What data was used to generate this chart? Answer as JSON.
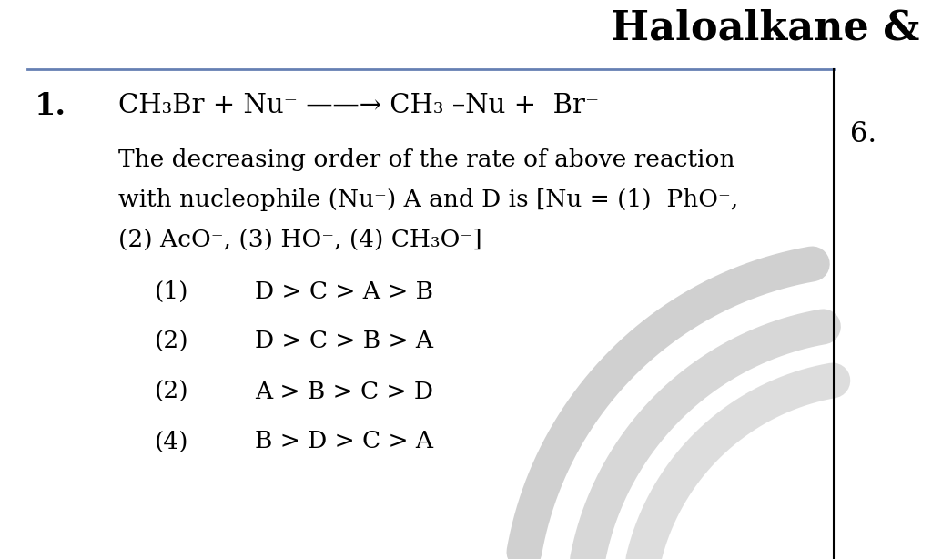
{
  "title": "Haloalkane &",
  "title_color": "#000000",
  "title_fontsize": 32,
  "background_color": "#ffffff",
  "header_line_color": "#6680b3",
  "question_number": "1.",
  "q_number_fontsize": 22,
  "equation": "CH₃Br + Nu⁻ ——→ CH₃ –Nu +  Br⁻",
  "description_line1": "The decreasing order of the rate of above reaction",
  "description_line2": "with nucleophile (Nu⁻) A and D is [Nu = (1)  PhO⁻,",
  "description_line3": "(2) AcO⁻, (3) HO⁻, (4) CH₃O⁻]",
  "options": [
    {
      "num": "(1)",
      "text": "D > C > A > B"
    },
    {
      "num": "(2)",
      "text": "D > C > B > A"
    },
    {
      "num": "(2)",
      "text": "A > B > C > D"
    },
    {
      "num": "(4)",
      "text": "B > D > C > A"
    }
  ],
  "side_number": "6.",
  "text_fontsize": 19,
  "option_fontsize": 19
}
